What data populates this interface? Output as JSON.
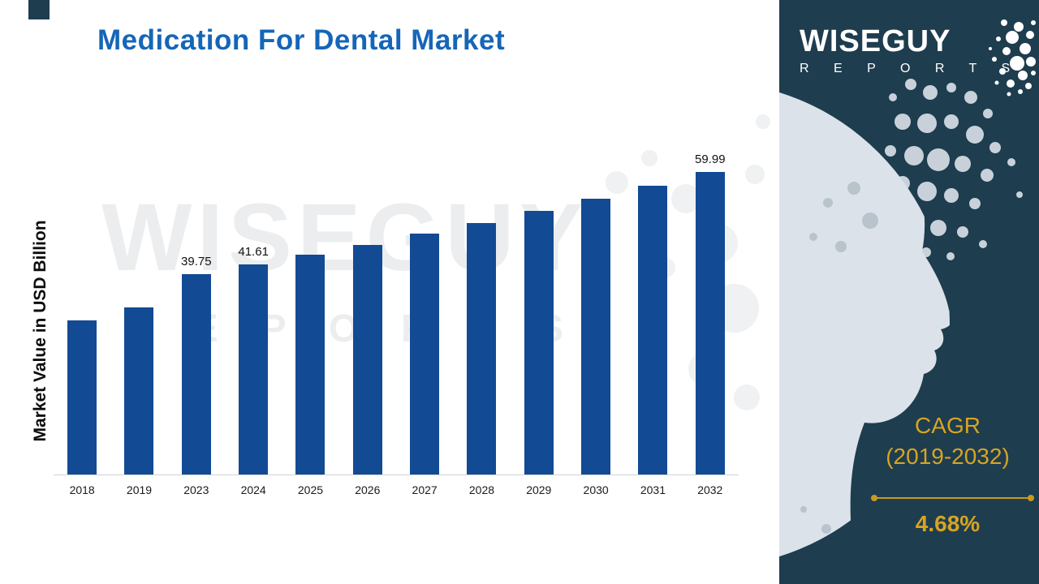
{
  "title": "Medication For Dental Market",
  "logo": {
    "line1": "WISEGUY",
    "line2": "R E P O R T S"
  },
  "watermark": {
    "line1": "WISEGUY",
    "line2": "REPORTS"
  },
  "side_panel": {
    "cagr_label": "CAGR",
    "cagr_period": "(2019-2032)",
    "cagr_value": "4.68%"
  },
  "colors": {
    "bar": "#124a94",
    "title": "#1566b8",
    "panel": "#1e3d4f",
    "panel_circle": "#dbe2e9",
    "gold": "#d7a422",
    "background": "#ffffff"
  },
  "chart_data": {
    "type": "bar",
    "title": "Medication For Dental Market",
    "xlabel": "",
    "ylabel": "Market Value in USD Billion",
    "categories": [
      "2018",
      "2019",
      "2023",
      "2024",
      "2025",
      "2026",
      "2027",
      "2028",
      "2029",
      "2030",
      "2031",
      "2032"
    ],
    "values": [
      30.5,
      33.15,
      39.75,
      41.61,
      43.56,
      45.6,
      47.73,
      49.96,
      52.3,
      54.75,
      57.31,
      59.99
    ],
    "bar_labels": [
      "",
      "",
      "39.75",
      "41.61",
      "",
      "",
      "",
      "",
      "",
      "",
      "",
      "59.99"
    ],
    "ylim": [
      0,
      70
    ],
    "grid": false,
    "legend": "none",
    "cagr": "4.68%",
    "cagr_period": "2019-2032"
  }
}
